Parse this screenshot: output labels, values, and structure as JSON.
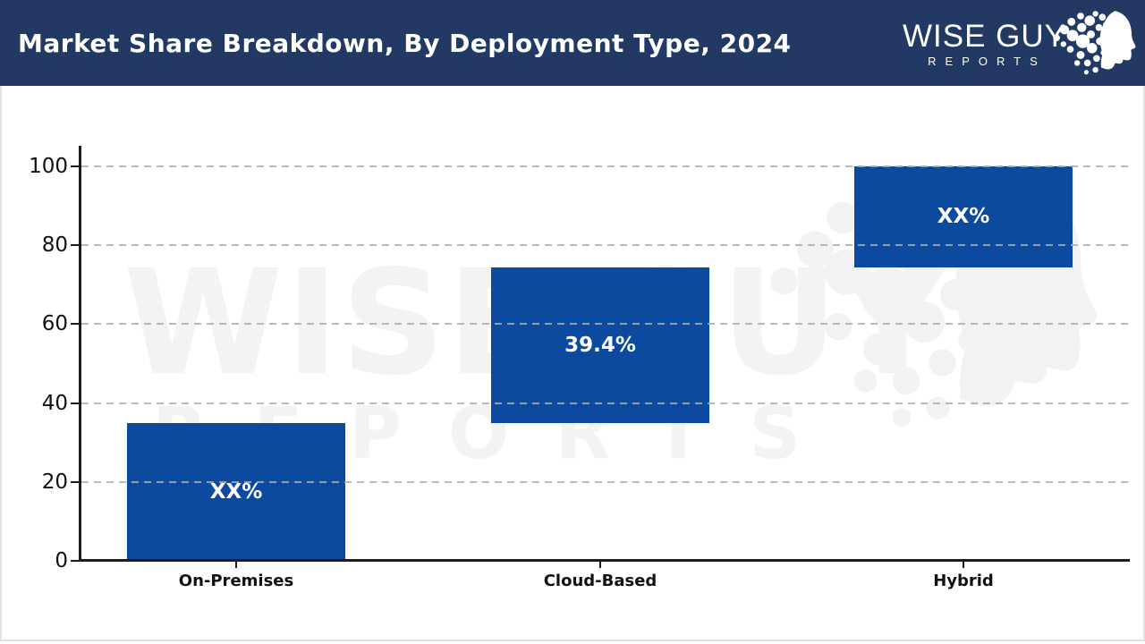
{
  "header": {
    "title": "Market Share Breakdown, By Deployment Type, 2024",
    "logo": {
      "line1": "WISE GUY",
      "line2": "REPORTS"
    }
  },
  "watermark": {
    "line1": "WISE GUY",
    "line2": "REPORTS"
  },
  "colors": {
    "header_bg": "#223963",
    "bar_fill": "#0b4a9f",
    "bar_label_text": "#ffffff",
    "gridline": "#adadad",
    "axis": "#1c1c1c",
    "watermark": "#f3f3f4"
  },
  "chart_data": {
    "type": "bar",
    "subtype": "floating-waterfall",
    "title": "Market Share Breakdown, By Deployment Type, 2024",
    "xlabel": "",
    "ylabel": "",
    "categories": [
      "On-Premises",
      "Cloud-Based",
      "Hybrid"
    ],
    "bars": [
      {
        "category": "On-Premises",
        "start": 0,
        "end": 35,
        "label": "XX%"
      },
      {
        "category": "Cloud-Based",
        "start": 35,
        "end": 74.4,
        "label": "39.4%"
      },
      {
        "category": "Hybrid",
        "start": 74.4,
        "end": 100,
        "label": "XX%"
      }
    ],
    "yticks": [
      0,
      20,
      40,
      60,
      80,
      100
    ],
    "ylim": [
      0,
      105
    ],
    "grid": "horizontal-dashed-over-bars",
    "legend": false
  }
}
